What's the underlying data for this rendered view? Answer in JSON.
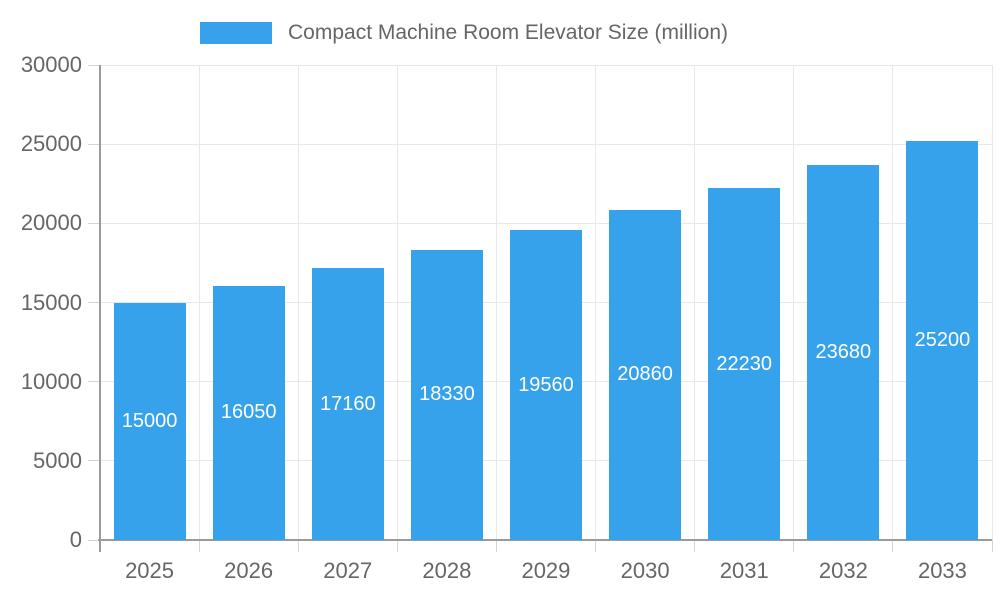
{
  "legend": {
    "label": "Compact Machine Room Elevator Size (million)"
  },
  "chart_data": {
    "type": "bar",
    "title": "Compact Machine Room Elevator Size (million)",
    "categories": [
      "2025",
      "2026",
      "2027",
      "2028",
      "2029",
      "2030",
      "2031",
      "2032",
      "2033"
    ],
    "values": [
      15000,
      16050,
      17160,
      18330,
      19560,
      20860,
      22230,
      23680,
      25200
    ],
    "value_labels": [
      "15000",
      "16050",
      "17160",
      "18330",
      "19560",
      "20860",
      "22230",
      "23680",
      "25200"
    ],
    "xlabel": "",
    "ylabel": "",
    "ylim": [
      0,
      30000
    ],
    "ytick_step": 5000,
    "ytick_labels": [
      "0",
      "5000",
      "10000",
      "15000",
      "20000",
      "25000",
      "30000"
    ],
    "grid": true,
    "legend_position": "top",
    "value_label_position": "inside-center"
  },
  "colors": {
    "bar": "#36A2EB",
    "grid": "#E8E8E8",
    "tick": "#D4D4D4",
    "axis": "#9A9A9A",
    "axis_text": "#666666",
    "legend_text": "#666666",
    "value_label": "#FFFFFF",
    "background": "#FFFFFF"
  }
}
